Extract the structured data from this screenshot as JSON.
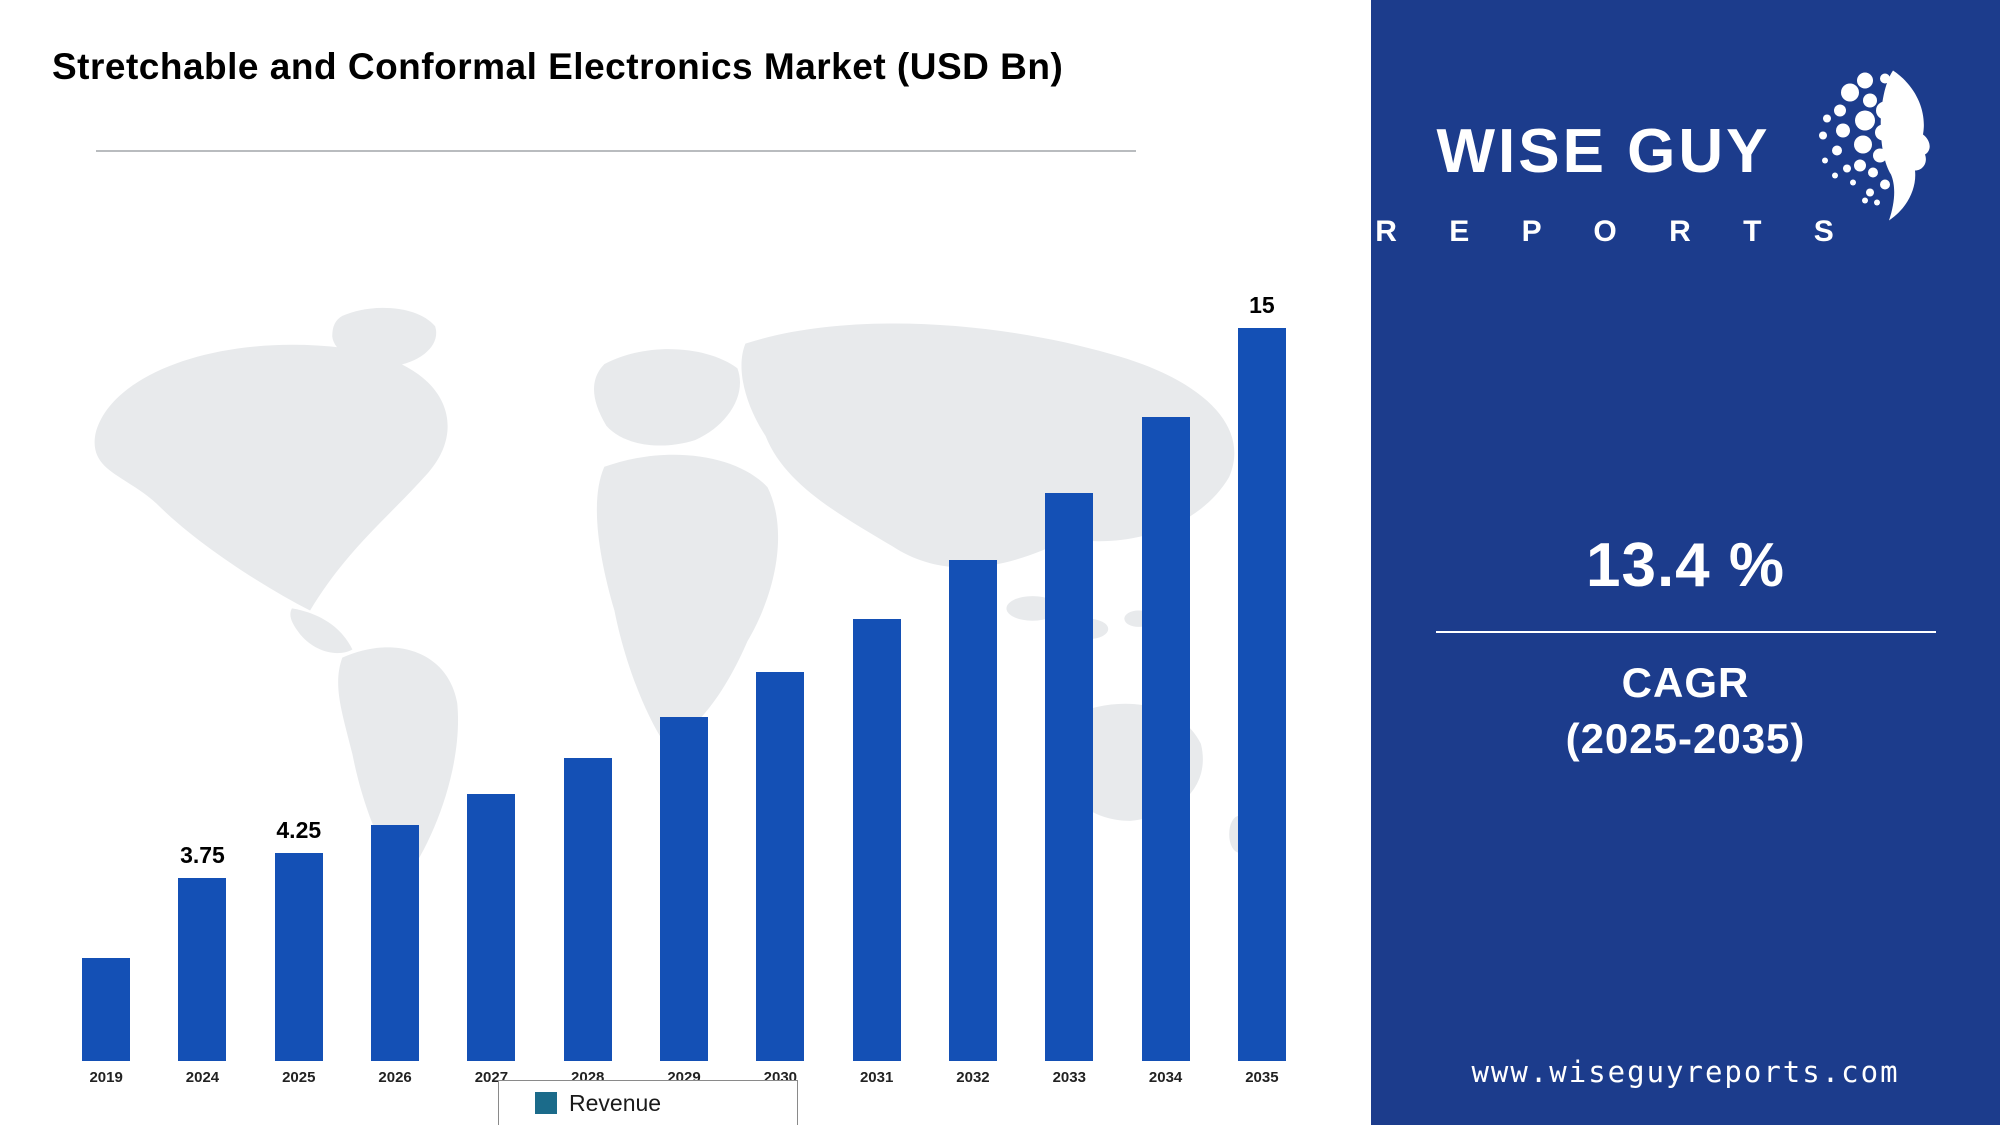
{
  "chart": {
    "title": "Stretchable and Conformal Electronics Market (USD Bn)",
    "legend_label": "Revenue",
    "bar_color": "#1450b5",
    "legend_color": "#1b6b8a"
  },
  "chart_data": {
    "type": "bar",
    "title": "Stretchable and Conformal Electronics Market (USD Bn)",
    "categories": [
      "2019",
      "2024",
      "2025",
      "2026",
      "2027",
      "2028",
      "2029",
      "2030",
      "2031",
      "2032",
      "2033",
      "2034",
      "2035"
    ],
    "values": [
      2.1,
      3.75,
      4.25,
      4.82,
      5.47,
      6.2,
      7.03,
      7.97,
      9.04,
      10.25,
      11.62,
      13.18,
      15
    ],
    "value_labels": {
      "2024": "3.75",
      "2025": "4.25",
      "2035": "15"
    },
    "xlabel": "",
    "ylabel": "",
    "ylim": [
      0,
      15
    ],
    "grid": false,
    "legend": [
      "Revenue"
    ],
    "legend_position": "bottom-center",
    "background": "world-map-watermark"
  },
  "sidebar": {
    "brand_line1": "WISE GUY",
    "brand_line2": "R E P O R T S",
    "cagr_value": "13.4 %",
    "cagr_label": "CAGR",
    "cagr_period": "(2025-2035)",
    "website": "www.wiseguyreports.com",
    "bg_color": "#1c3c8c"
  }
}
